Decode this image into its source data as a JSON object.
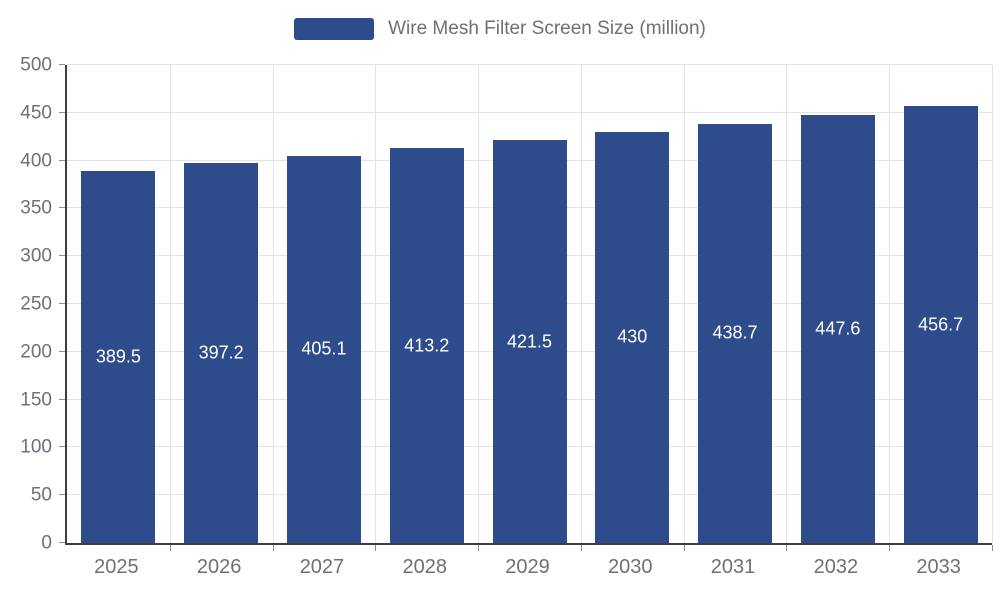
{
  "legend": {
    "label": "Wire Mesh Filter Screen Size (million)",
    "swatch_color": "#2E4B8C"
  },
  "chart_data": {
    "type": "bar",
    "title": "Wire Mesh Filter Screen Size (million)",
    "categories": [
      "2025",
      "2026",
      "2027",
      "2028",
      "2029",
      "2030",
      "2031",
      "2032",
      "2033"
    ],
    "values": [
      389.5,
      397.2,
      405.1,
      413.2,
      421.5,
      430,
      438.7,
      447.6,
      456.7
    ],
    "value_labels": [
      "389.5",
      "397.2",
      "405.1",
      "413.2",
      "421.5",
      "430",
      "438.7",
      "447.6",
      "456.7"
    ],
    "xlabel": "",
    "ylabel": "",
    "ylim": [
      0,
      500
    ],
    "ytick_step": 50,
    "ytick_labels": [
      "0",
      "50",
      "100",
      "150",
      "200",
      "250",
      "300",
      "350",
      "400",
      "450",
      "500"
    ],
    "bar_color": "#2E4B8C",
    "bar_value_label_color": "#ffffff",
    "axis_label_color": "#6E7079",
    "gridline_color": "#E0E3E8",
    "grid": true,
    "legend_position": "top"
  }
}
